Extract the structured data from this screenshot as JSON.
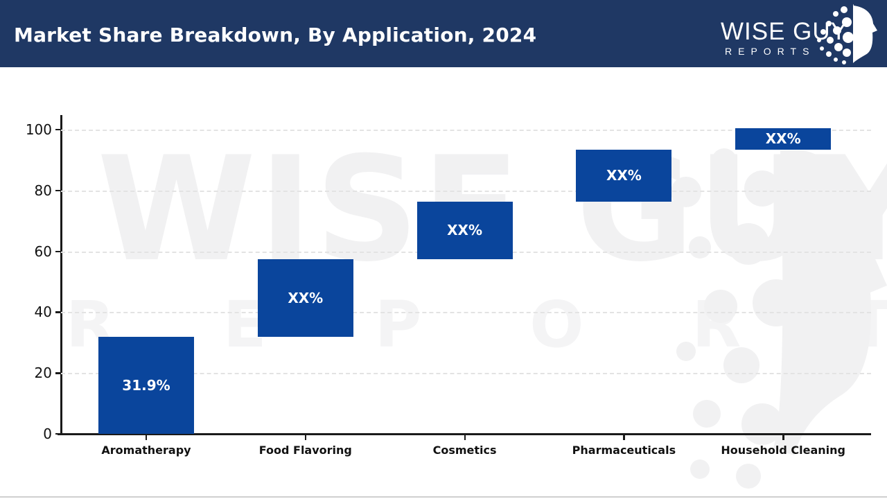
{
  "header": {
    "title": "Market Share Breakdown, By Application, 2024",
    "bg_color": "#1f3864",
    "logo": {
      "line1": "WISE GUY",
      "line2": "REPORTS"
    }
  },
  "watermark": {
    "line1": "WISE GUY",
    "line2": "R E P O R T S"
  },
  "chart_data": {
    "type": "bar",
    "subtype": "waterfall (stacked market-share breakdown, floating segments)",
    "title": "Market Share Breakdown, By Application, 2024",
    "categories": [
      "Aromatherapy",
      "Food Flavoring",
      "Cosmetics",
      "Pharmaceuticals",
      "Household Cleaning"
    ],
    "segments": [
      {
        "category": "Aromatherapy",
        "start": 0,
        "end": 31.9,
        "label": "31.9%"
      },
      {
        "category": "Food Flavoring",
        "start": 31.9,
        "end": 57.3,
        "label": "XX%"
      },
      {
        "category": "Cosmetics",
        "start": 57.5,
        "end": 76.4,
        "label": "XX%"
      },
      {
        "category": "Pharmaceuticals",
        "start": 76.4,
        "end": 93.5,
        "label": "XX%"
      },
      {
        "category": "Household Cleaning",
        "start": 93.5,
        "end": 100.4,
        "label": "XX%"
      }
    ],
    "yticks": [
      0,
      20,
      40,
      60,
      80,
      100
    ],
    "ylim": [
      0,
      105
    ],
    "xlabel": "",
    "ylabel": "",
    "grid": "horizontal dashed, at y=20..100",
    "legend": "none",
    "bar_color": "#0a459c",
    "bar_label_color": "#ffffff"
  }
}
